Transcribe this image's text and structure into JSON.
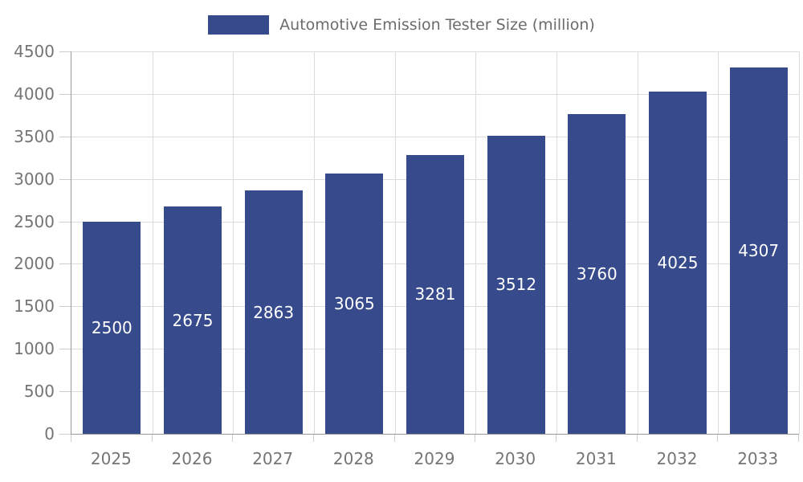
{
  "legend": {
    "label": "Automotive Emission Tester Size (million)"
  },
  "chart_data": {
    "type": "bar",
    "title": "",
    "categories": [
      "2025",
      "2026",
      "2027",
      "2028",
      "2029",
      "2030",
      "2031",
      "2032",
      "2033"
    ],
    "series": [
      {
        "name": "Automotive Emission Tester Size (million)",
        "values": [
          2500,
          2675,
          2863,
          3065,
          3281,
          3512,
          3760,
          4025,
          4307
        ]
      }
    ],
    "xlabel": "",
    "ylabel": "",
    "ylim": [
      0,
      4500
    ],
    "ytick_step": 500,
    "ytick_labels": [
      "0",
      "500",
      "1000",
      "1500",
      "2000",
      "2500",
      "3000",
      "3500",
      "4000",
      "4500"
    ],
    "grid": true,
    "legend_position": "top-center",
    "value_labels_inside_bars": true
  },
  "colors": {
    "bar": "#364a8c",
    "legend_text": "#6b6b6b",
    "tick_label": "#757575",
    "gridline": "#dcdcdc",
    "tick": "#cccccc",
    "axis": "#999999",
    "value_label": "#ffffff",
    "background": "#ffffff"
  }
}
